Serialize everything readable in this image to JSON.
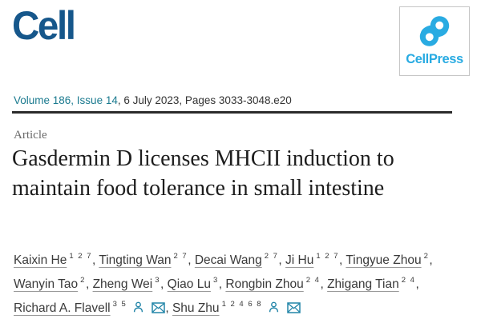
{
  "header": {
    "journal_name": "Cell",
    "publisher_name": "CellPress"
  },
  "citation": {
    "issue_link": "Volume 186, Issue 14",
    "date_pages": ", 6 July 2023, Pages 3033-3048.e20"
  },
  "article": {
    "type_label": "Article",
    "title": "Gasdermin D licenses MHCII induction to maintain food tolerance in small intestine"
  },
  "authors": {
    "separator": ", ",
    "list": [
      {
        "name": "Kaixin He",
        "affiliations": "1 2 7"
      },
      {
        "name": "Tingting Wan",
        "affiliations": "2 7"
      },
      {
        "name": "Decai Wang",
        "affiliations": "2 7"
      },
      {
        "name": "Ji Hu",
        "affiliations": "1 2 7"
      },
      {
        "name": "Tingyue Zhou",
        "affiliations": "2"
      },
      {
        "name": "Wanyin Tao",
        "affiliations": "2"
      },
      {
        "name": "Zheng Wei",
        "affiliations": "3"
      },
      {
        "name": "Qiao Lu",
        "affiliations": "3"
      },
      {
        "name": "Rongbin Zhou",
        "affiliations": "2 4"
      },
      {
        "name": "Zhigang Tian",
        "affiliations": "2 4"
      },
      {
        "name": "Richard A. Flavell",
        "affiliations": "3 5",
        "has_person_icon": true,
        "has_email_icon": true
      },
      {
        "name": "Shu Zhu",
        "affiliations": "1 2 4 6 8",
        "has_person_icon": true,
        "has_email_icon": true
      }
    ]
  },
  "icons": {
    "person": "person-icon",
    "email": "envelope-icon",
    "publisher_mark": "cellpress-swoosh-icon"
  },
  "colors": {
    "cell_logo_blue": "#16578b",
    "cellpress_cyan": "#29abe2",
    "citation_link_teal": "#1b7a8f",
    "icon_teal": "#2285a8",
    "divider_dark": "#2b2b2b",
    "title_text": "#1d1d1d",
    "body_text": "#3a3a3a"
  }
}
